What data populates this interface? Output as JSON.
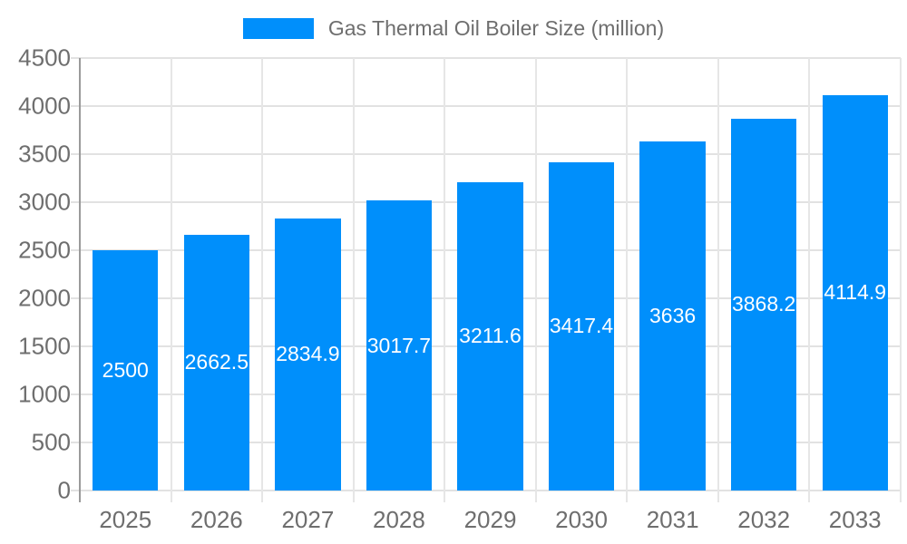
{
  "legend": {
    "label": "Gas Thermal Oil Boiler Size (million)"
  },
  "colors": {
    "bar": "#008FFB",
    "bar_value_text": "#ffffff",
    "axis_text": "#6e6e6e",
    "grid": "#e2e2e2",
    "axis_line": "#9a9a9a"
  },
  "chart_data": {
    "type": "bar",
    "title": "Gas Thermal Oil Boiler Size (million)",
    "categories": [
      "2025",
      "2026",
      "2027",
      "2028",
      "2029",
      "2030",
      "2031",
      "2032",
      "2033"
    ],
    "values": [
      2500,
      2662.5,
      2834.9,
      3017.7,
      3211.6,
      3417.4,
      3636,
      3868.2,
      4114.9
    ],
    "xlabel": "",
    "ylabel": "",
    "ylim": [
      0,
      4500
    ],
    "ytick_step": 500,
    "yticks": [
      "0",
      "500",
      "1000",
      "1500",
      "2000",
      "2500",
      "3000",
      "3500",
      "4000",
      "4500"
    ],
    "grid": true,
    "legend_position": "top",
    "value_labels": "inside-center"
  }
}
